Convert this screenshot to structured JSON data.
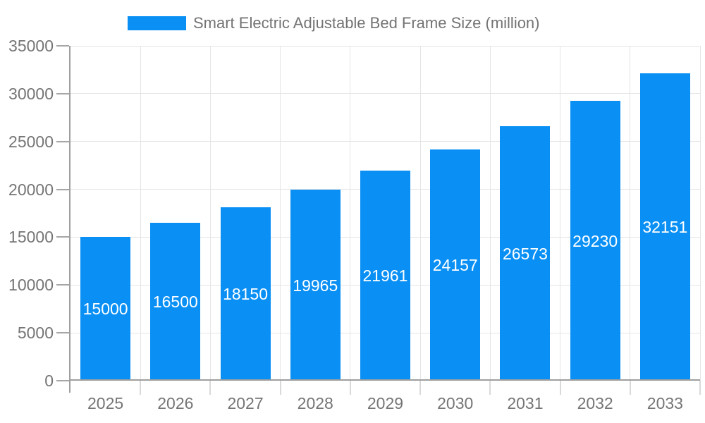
{
  "legend": {
    "label": "Smart Electric Adjustable Bed Frame Size (million)"
  },
  "chart_data": {
    "type": "bar",
    "title": "Smart Electric Adjustable Bed Frame Size (million)",
    "categories": [
      "2025",
      "2026",
      "2027",
      "2028",
      "2029",
      "2030",
      "2031",
      "2032",
      "2033"
    ],
    "series": [
      {
        "name": "Smart Electric Adjustable Bed Frame Size (million)",
        "values": [
          15000,
          16500,
          18150,
          19965,
          21961,
          24157,
          26573,
          29230,
          32151
        ]
      }
    ],
    "xlabel": "",
    "ylabel": "",
    "ylim": [
      0,
      35000
    ],
    "ytick_step": 5000,
    "yticks": [
      0,
      5000,
      10000,
      15000,
      20000,
      25000,
      30000,
      35000
    ],
    "grid": true,
    "legend_position": "top",
    "bar_labels_inside": true,
    "colors": {
      "bar": "#0a90f5",
      "bar_label": "#ffffff",
      "axis": "#9e9e9e",
      "grid": "#e5e5e5",
      "tick_y": "#a6a6a6",
      "tick_x": "#d9d9d9",
      "text": "#757575",
      "legend_text": "#737373",
      "background": "#ffffff"
    }
  }
}
